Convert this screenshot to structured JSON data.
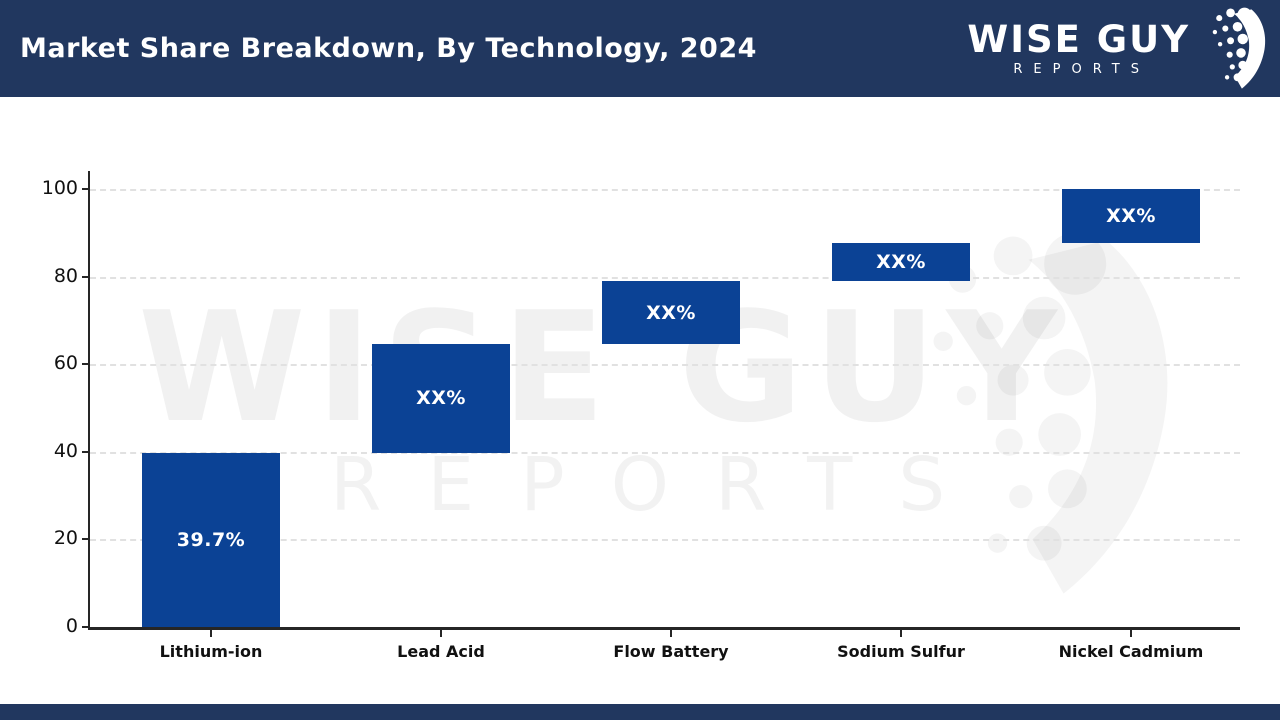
{
  "header": {
    "title": "Market Share Breakdown, By Technology, 2024",
    "bg_color": "#21375f",
    "logo": {
      "line1": "WISE GUY",
      "line2": "REPORTS",
      "head_icon": "dotted-profile-head-icon"
    }
  },
  "watermark": {
    "line1": "WISE GUY",
    "line2": "REPORTS",
    "color": "#f0f0f0"
  },
  "footer": {
    "bg_color": "#21375f"
  },
  "chart_data": {
    "type": "bar",
    "subtype": "waterfall",
    "title": "Market Share Breakdown, By Technology, 2024",
    "xlabel": "",
    "ylabel": "",
    "categories": [
      "Lithium-ion",
      "Lead Acid",
      "Flow Battery",
      "Sodium Sulfur",
      "Nickel Cadmium"
    ],
    "segments": [
      {
        "category": "Lithium-ion",
        "start": 0,
        "end": 39.7,
        "value": 39.7,
        "label": "39.7%"
      },
      {
        "category": "Lead Acid",
        "start": 39.7,
        "end": 64.7,
        "value": 25.0,
        "label": "XX%"
      },
      {
        "category": "Flow Battery",
        "start": 64.7,
        "end": 78.9,
        "value": 14.2,
        "label": "XX%"
      },
      {
        "category": "Sodium Sulfur",
        "start": 78.9,
        "end": 87.6,
        "value": 8.7,
        "label": "XX%"
      },
      {
        "category": "Nickel Cadmium",
        "start": 87.6,
        "end": 100.0,
        "value": 12.4,
        "label": "XX%"
      }
    ],
    "yticks": [
      0,
      20,
      40,
      60,
      80,
      100
    ],
    "ylim": [
      0,
      104
    ],
    "bar_color": "#0b4295",
    "value_label_color": "#ffffff",
    "axis_color": "#262626",
    "grid_color": "#e1e1e1",
    "grid": "horizontal dashed",
    "legend": "none"
  }
}
